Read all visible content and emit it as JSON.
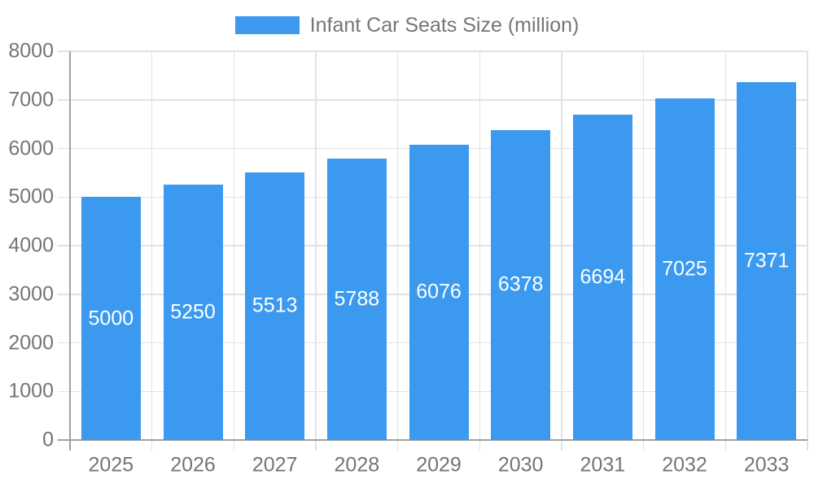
{
  "chart_data": {
    "type": "bar",
    "title": "Infant Car Seats Size (million)",
    "categories": [
      "2025",
      "2026",
      "2027",
      "2028",
      "2029",
      "2030",
      "2031",
      "2032",
      "2033"
    ],
    "values": [
      5000,
      5250,
      5513,
      5788,
      6076,
      6378,
      6694,
      7025,
      7371
    ],
    "xlabel": "",
    "ylabel": "",
    "ylim": [
      0,
      8000
    ],
    "yticks": [
      0,
      1000,
      2000,
      3000,
      4000,
      5000,
      6000,
      7000,
      8000
    ],
    "grid": true,
    "legend_position": "top",
    "bar_labels_shown": true,
    "colors": {
      "bar": "#3b9af0",
      "bar_label": "#ffffff",
      "axis_text": "#757575",
      "grid": "#e2e2e2",
      "axis_line": "#a0a0a0",
      "background": "#ffffff"
    }
  }
}
